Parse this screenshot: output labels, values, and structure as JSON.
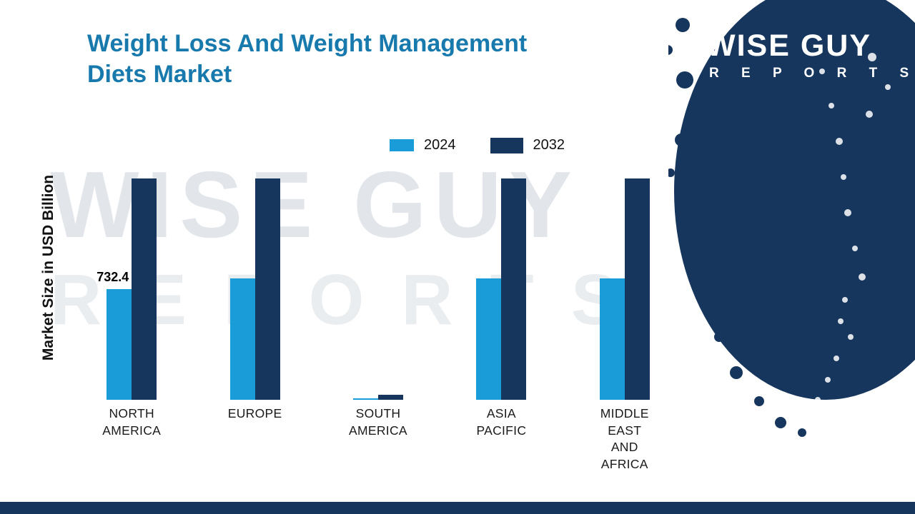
{
  "header": {
    "title_line1": "Weight Loss And Weight Management",
    "title_line2": "Diets Market"
  },
  "logo": {
    "line1": "WISE GUY",
    "line2": "R E P O R T S"
  },
  "watermark": {
    "line1": "WISE GUY",
    "line2": "REPORTS"
  },
  "colors": {
    "title_accent": "#1879ad",
    "bar_2024": "#199cd8",
    "bar_2032": "#17365d",
    "footer_strip": "#17365d",
    "logo_background": "#17365d",
    "watermark_gray": "#ccd3dc"
  },
  "chart_data": {
    "type": "bar",
    "title": "Weight Loss And Weight Management Diets Market",
    "xlabel": "",
    "ylabel": "Market Size in USD Billion",
    "ylim": [
      0,
      1600
    ],
    "grid": false,
    "legend_position": "top",
    "categories": [
      "NORTH AMERICA",
      "EUROPE",
      "SOUTH AMERICA",
      "ASIA PACIFIC",
      "MIDDLE EAST AND AFRICA"
    ],
    "category_labels": [
      "NORTH\nAMERICA",
      "EUROPE",
      "SOUTH\nAMERICA",
      "ASIA\nPACIFIC",
      "MIDDLE\nEAST\nAND\nAFRICA"
    ],
    "series": [
      {
        "name": "2024",
        "color": "#199cd8",
        "values": [
          732.4,
          805,
          12,
          805,
          805
        ]
      },
      {
        "name": "2032",
        "color": "#17365d",
        "values": [
          1465,
          1465,
          35,
          1465,
          1465
        ]
      }
    ],
    "value_labels": [
      {
        "series": 0,
        "category": 0,
        "text": "732.4"
      }
    ]
  }
}
